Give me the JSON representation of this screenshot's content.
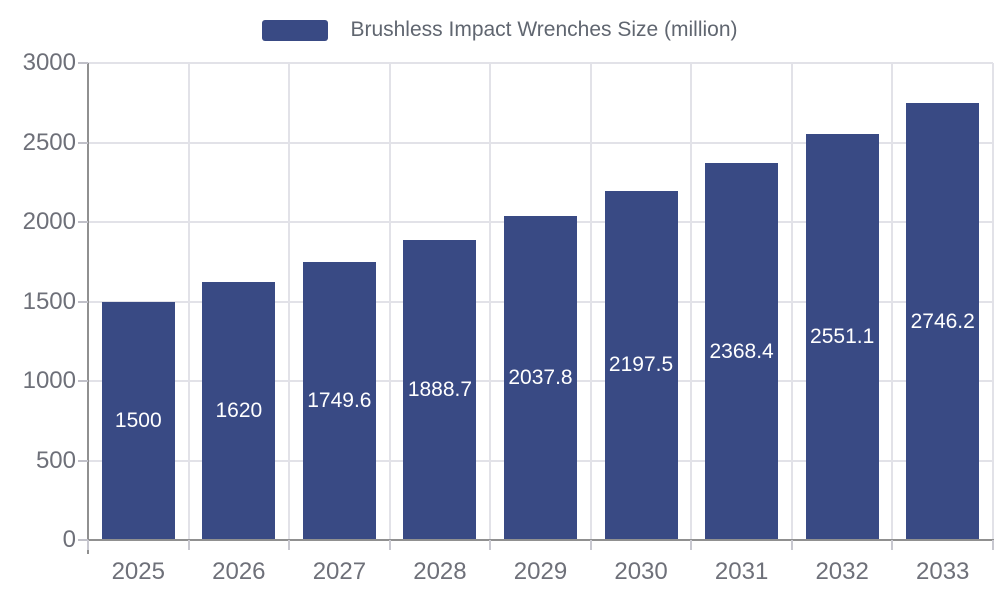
{
  "chart_data": {
    "type": "bar",
    "legend": "Brushless Impact Wrenches Size (million)",
    "categories": [
      "2025",
      "2026",
      "2027",
      "2028",
      "2029",
      "2030",
      "2031",
      "2032",
      "2033"
    ],
    "values": [
      1500,
      1620,
      1749.6,
      1888.7,
      2037.8,
      2197.5,
      2368.4,
      2551.1,
      2746.2
    ],
    "value_labels": [
      "1500",
      "1620",
      "1749.6",
      "1888.7",
      "2037.8",
      "2197.5",
      "2368.4",
      "2551.1",
      "2746.2"
    ],
    "yticks": [
      "0",
      "500",
      "1000",
      "1500",
      "2000",
      "2500",
      "3000"
    ],
    "ytick_step": 500,
    "ylim": [
      0,
      3000
    ],
    "grid": true,
    "legend_position": "top",
    "value_label_position": "inside-middle",
    "bar_color": "#394A84",
    "value_label_color": "#ffffff",
    "axis_label_color": "#6e7079",
    "legend_text_color": "#606670",
    "gridline_color": "#e2e2e8",
    "axis_line_color": "#909090"
  }
}
